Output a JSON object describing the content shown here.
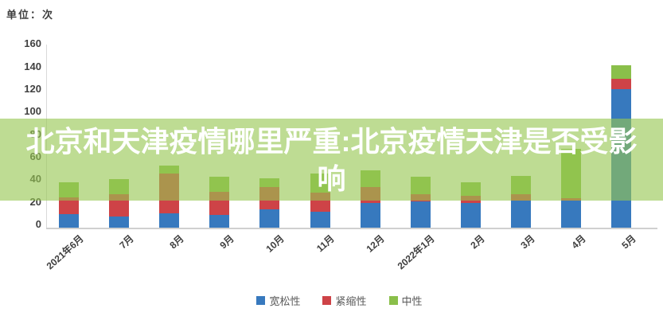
{
  "unit_label": "单位：次",
  "overlay_title": {
    "full_text": "北京和天津疫情哪里严重:北京疫情天津是否受影响",
    "lines": [
      "北京和天津疫情哪里严重:北京疫情天津是否受影",
      "响"
    ],
    "background": "rgba(150,198,80,0.62)",
    "text_color": "#ffffff"
  },
  "chart_data": {
    "type": "bar",
    "stacked": true,
    "title": "",
    "xlabel": "",
    "ylabel": "单位：次",
    "unit": "次",
    "ylim": [
      0,
      160
    ],
    "ytick_step": 20,
    "grid": false,
    "legend_position": "bottom",
    "categories": [
      "2021年6月",
      "7月",
      "8月",
      "9月",
      "10月",
      "11月",
      "12月",
      "2022年1月",
      "2月",
      "3月",
      "4月",
      "5月"
    ],
    "series": [
      {
        "name": "宽松性",
        "color": "#3779be",
        "values": [
          12,
          10,
          13,
          11,
          16,
          14,
          22,
          23,
          22,
          24,
          24,
          123
        ]
      },
      {
        "name": "紧缩性",
        "color": "#ce4347",
        "values": [
          15,
          20,
          35,
          21,
          20,
          17,
          14,
          7,
          6,
          6,
          2,
          9
        ]
      },
      {
        "name": "中性",
        "color": "#8abf4a",
        "values": [
          13,
          13,
          7,
          13,
          8,
          17,
          15,
          15,
          12,
          16,
          44,
          12
        ]
      }
    ],
    "totals": [
      40,
      43,
      55,
      45,
      44,
      48,
      51,
      45,
      40,
      46,
      70,
      144
    ]
  },
  "axis": {
    "tick_color": "#404040",
    "line_color": "#d9d9d9"
  }
}
